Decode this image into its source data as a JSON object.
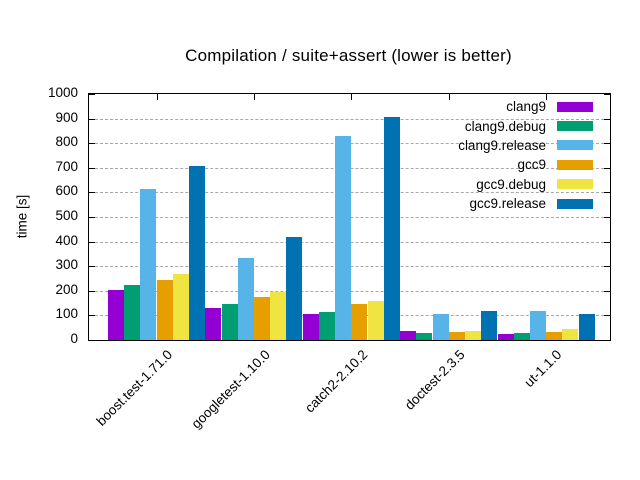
{
  "chart_data": {
    "type": "bar",
    "title": "Compilation / suite+assert (lower is better)",
    "ylabel": "time [s]",
    "ylim": [
      0,
      1000
    ],
    "ytick_step": 100,
    "grid": true,
    "legend_position": "top-right-inside",
    "categories": [
      "boost.test-1.71.0",
      "googletest-1.10.0",
      "catch2-2.10.2",
      "doctest-2.3.5",
      "ut-1.1.0"
    ],
    "series": [
      {
        "name": "clang9",
        "color": "#9400d3",
        "values": [
          205,
          130,
          105,
          36,
          23
        ]
      },
      {
        "name": "clang9.debug",
        "color": "#009e73",
        "values": [
          225,
          148,
          115,
          30,
          30
        ]
      },
      {
        "name": "clang9.release",
        "color": "#56b4e9",
        "values": [
          612,
          335,
          828,
          104,
          117
        ]
      },
      {
        "name": "gcc9",
        "color": "#e69f00",
        "values": [
          243,
          175,
          146,
          31,
          32
        ]
      },
      {
        "name": "gcc9.debug",
        "color": "#f0e442",
        "values": [
          267,
          197,
          157,
          38,
          44
        ]
      },
      {
        "name": "gcc9.release",
        "color": "#0072b2",
        "values": [
          707,
          420,
          905,
          119,
          106
        ]
      }
    ]
  }
}
